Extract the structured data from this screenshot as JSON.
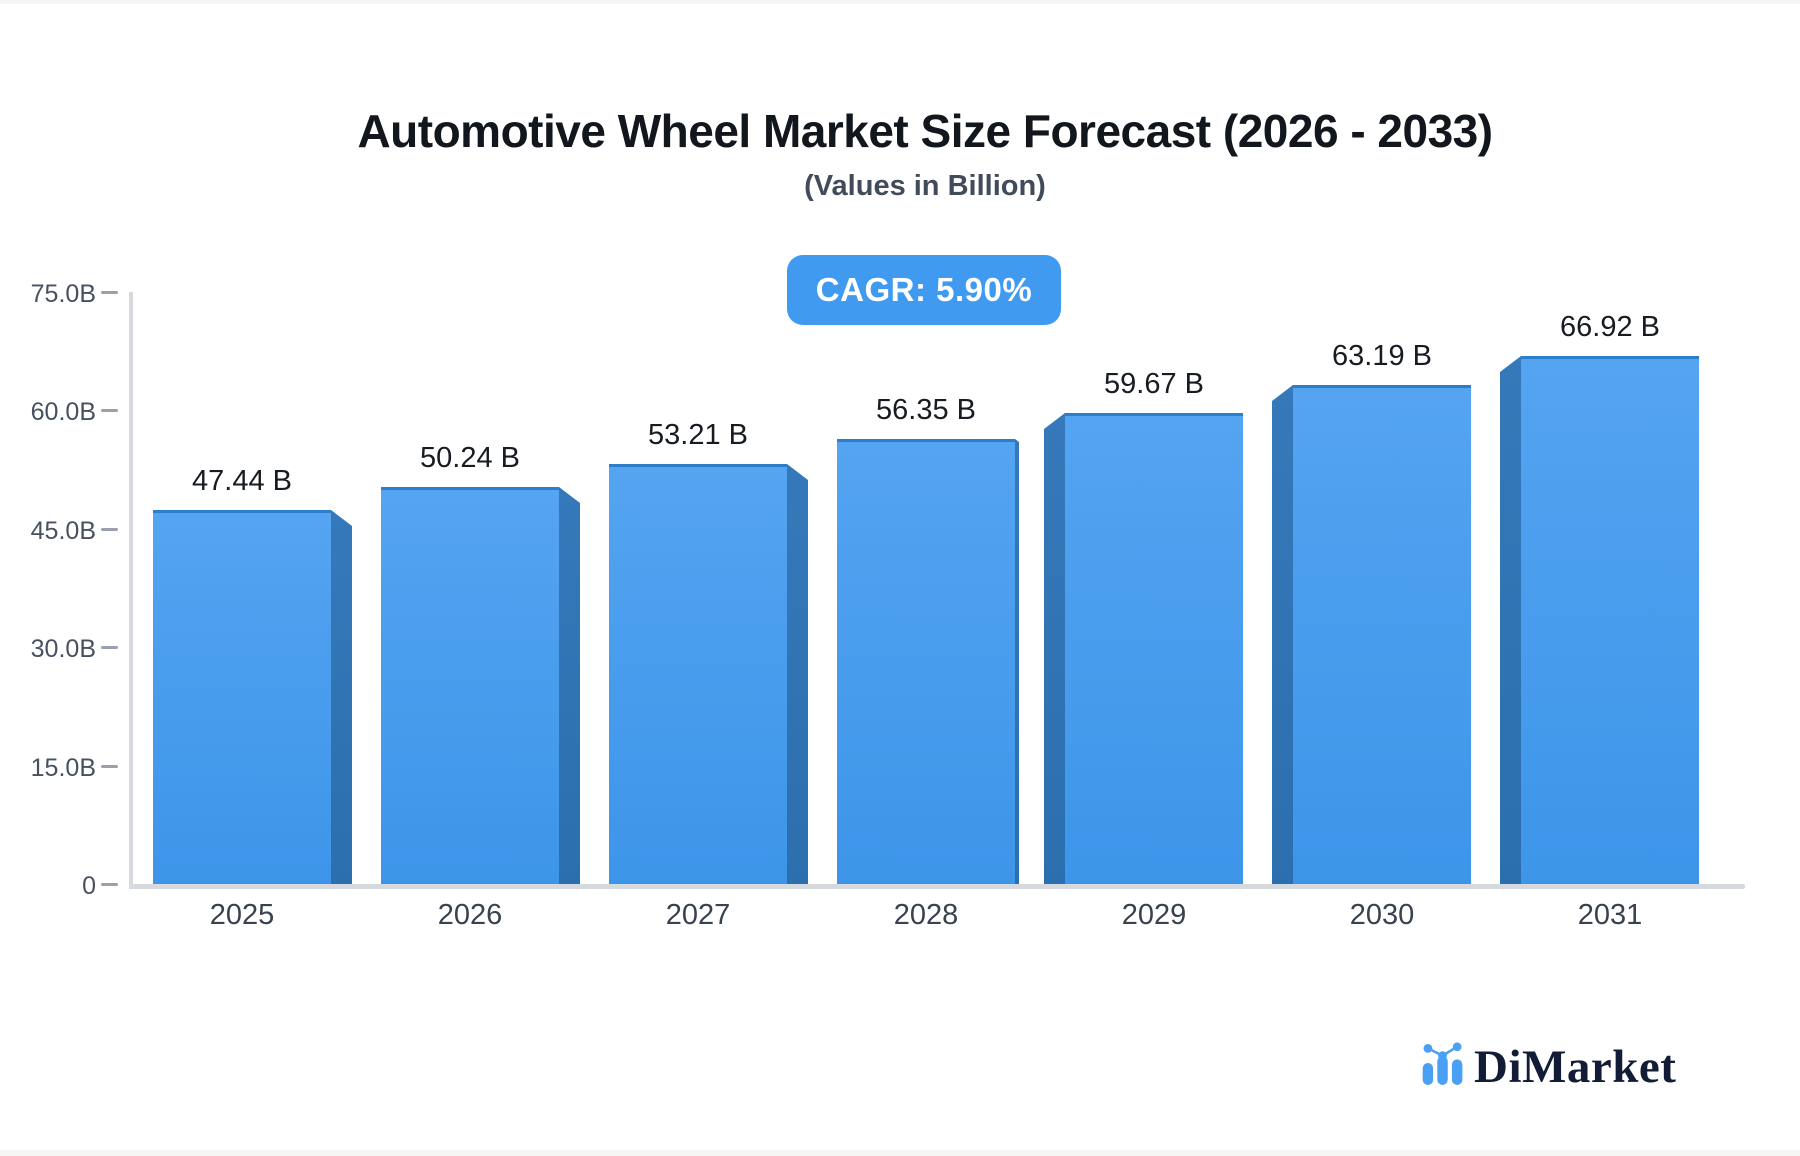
{
  "header": {
    "title": "Automotive Wheel Market Size Forecast (2026 - 2033)",
    "subtitle": "(Values in Billion)",
    "cagr_label": "CAGR: 5.90%"
  },
  "chart_data": {
    "type": "bar",
    "title": "Automotive Wheel Market Size Forecast (2026 - 2033)",
    "subtitle": "(Values in Billion)",
    "cagr_percent": "5.90%",
    "categories": [
      "2025",
      "2026",
      "2027",
      "2028",
      "2029",
      "2030",
      "2031"
    ],
    "values": [
      47.44,
      50.24,
      53.21,
      56.35,
      59.67,
      63.19,
      66.92
    ],
    "value_labels": [
      "47.44 B",
      "50.24 B",
      "53.21 B",
      "56.35 B",
      "59.67 B",
      "63.19 B",
      "66.92 B"
    ],
    "unit": "B",
    "ylim": [
      0,
      75
    ],
    "ytick_values": [
      75,
      60,
      45,
      30,
      15,
      0
    ],
    "ytick_labels": [
      "75.0B",
      "60.0B",
      "45.0B",
      "30.0B",
      "15.0B",
      "0"
    ],
    "grid": false,
    "legend": false,
    "colors": {
      "bar_face_top": "#54a4f1",
      "bar_face_bottom": "#3d95e9",
      "bar_face_border": "#2c7ec9",
      "bar_side_top": "#3579ba",
      "bar_side_bottom": "#2c6fae",
      "badge_background": "#3f9af0",
      "axis": "#d6dade",
      "tick": "#9aa1ac"
    }
  },
  "footer": {
    "brand": "DiMarket",
    "brand_icon": "bar-chart-logo-icon"
  }
}
